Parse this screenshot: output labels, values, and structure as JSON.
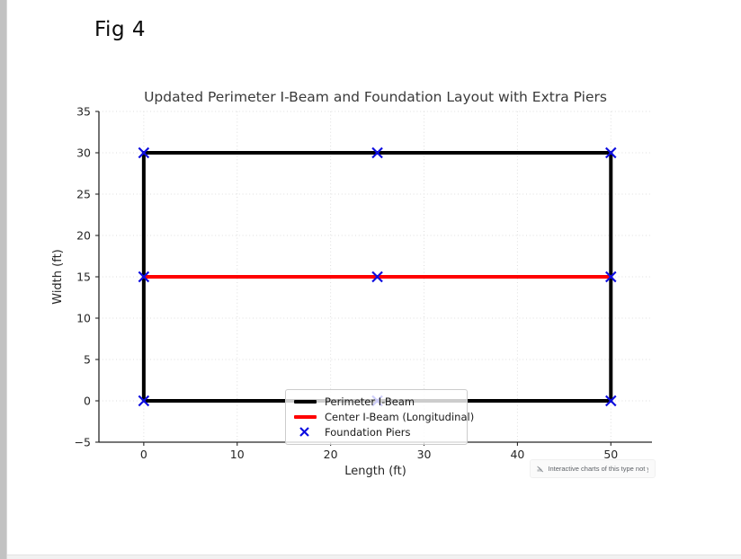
{
  "page": {
    "fig_label": "Fig 4"
  },
  "chart_data": {
    "type": "line",
    "title": "Updated Perimeter I-Beam and Foundation Layout with Extra Piers",
    "xlabel": "Length (ft)",
    "ylabel": "Width (ft)",
    "xlim": [
      -4.8,
      54.4
    ],
    "ylim": [
      -5,
      35
    ],
    "xticks": [
      0,
      10,
      20,
      30,
      40,
      50
    ],
    "xtick_labels": [
      "0",
      "10",
      "20",
      "30",
      "40",
      "50"
    ],
    "yticks": [
      35,
      30,
      25,
      20,
      15,
      10,
      5,
      0,
      -5
    ],
    "ytick_labels": [
      "35",
      "30",
      "25",
      "20",
      "15",
      "10",
      "5",
      "0",
      "−5"
    ],
    "grid": true,
    "grid_style": "dotted",
    "grid_color": "#dedede",
    "axis_color": "#262626",
    "title_color": "#3a3a3a",
    "legend_position": "lower center",
    "series": [
      {
        "name": "Perimeter I-Beam",
        "type": "line",
        "color": "#000000",
        "linewidth": 4,
        "x": [
          0,
          50,
          50,
          0,
          0
        ],
        "y": [
          0,
          0,
          30,
          30,
          0
        ]
      },
      {
        "name": "Center I-Beam (Longitudinal)",
        "type": "line",
        "color": "#ff0000",
        "linewidth": 4,
        "x": [
          0,
          50
        ],
        "y": [
          15,
          15
        ]
      },
      {
        "name": "Foundation Piers",
        "type": "scatter",
        "marker": "x",
        "color": "#0d0de0",
        "marker_size": 11,
        "marker_linewidth": 2.2,
        "points": [
          [
            0,
            0
          ],
          [
            25,
            0
          ],
          [
            50,
            0
          ],
          [
            0,
            15
          ],
          [
            25,
            15
          ],
          [
            50,
            15
          ],
          [
            0,
            30
          ],
          [
            25,
            30
          ],
          [
            50,
            30
          ]
        ]
      }
    ]
  },
  "badge": {
    "icon": "unsupported-chart-icon",
    "text": "Interactive charts of this type not yet supporte"
  }
}
